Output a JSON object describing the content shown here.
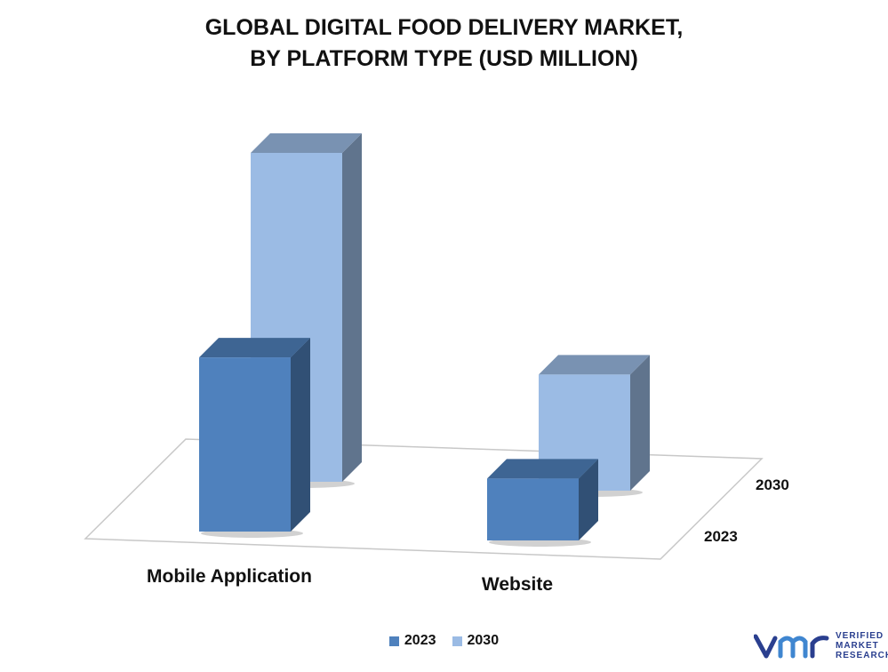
{
  "title_lines": [
    "GLOBAL DIGITAL FOOD DELIVERY MARKET,",
    "BY PLATFORM TYPE (USD MILLION)"
  ],
  "chart_data": {
    "type": "bar",
    "categories": [
      "Mobile Application",
      "Website"
    ],
    "series": [
      {
        "name": "2023",
        "color": "#4f81bd",
        "values": [
          45,
          16
        ]
      },
      {
        "name": "2030",
        "color": "#9bbbe4",
        "values": [
          85,
          30
        ]
      }
    ],
    "depth_labels": [
      "2030",
      "2023"
    ],
    "legend": [
      "2023",
      "2030"
    ],
    "legend_position": "bottom",
    "grid": false,
    "ylim": [
      0,
      85
    ]
  },
  "brand": {
    "name_lines": [
      "VERIFIED",
      "MARKET",
      "RESEARCH"
    ],
    "icon": "vmr-logo-icon",
    "color": "#2a3f8f"
  }
}
